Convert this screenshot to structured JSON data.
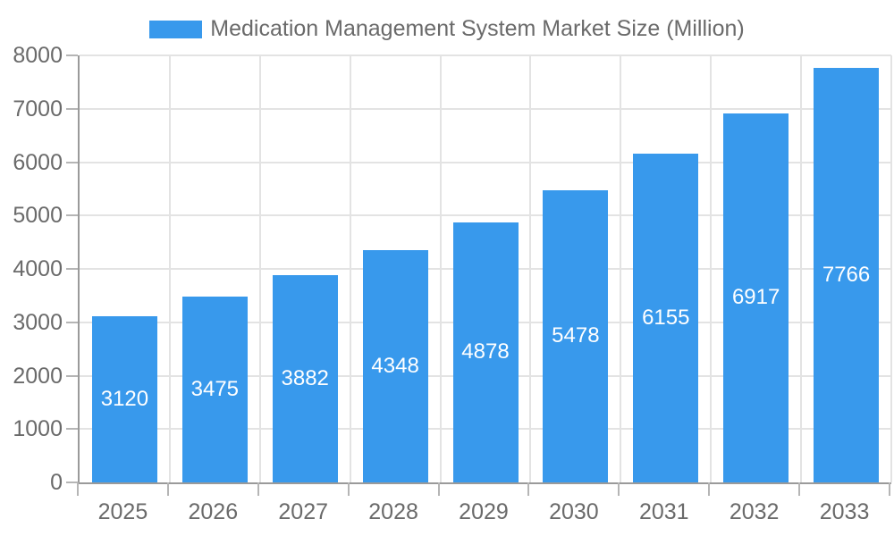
{
  "colors": {
    "bar": "#3899EC",
    "grid": "#E3E3E3",
    "axis": "#9A9A9A",
    "tick_mark": "#B5B5B5",
    "tick_label": "#6A6A6A",
    "value_label": "#FFFFFF",
    "legend_text": "#6A6A6A",
    "background": "#FFFFFF"
  },
  "chart_data": {
    "type": "bar",
    "title": "Medication Management System Market Size (Million)",
    "categories": [
      "2025",
      "2026",
      "2027",
      "2028",
      "2029",
      "2030",
      "2031",
      "2032",
      "2033"
    ],
    "values": [
      3120,
      3475,
      3882,
      4348,
      4878,
      5478,
      6155,
      6917,
      7766
    ],
    "xlabel": "",
    "ylabel": "",
    "ylim": [
      0,
      8000
    ],
    "y_tick_step": 1000,
    "y_tick_labels": [
      "0",
      "1000",
      "2000",
      "3000",
      "4000",
      "5000",
      "6000",
      "7000",
      "8000"
    ],
    "grid": true,
    "legend_position": "top",
    "value_label_position": "inside-center"
  }
}
